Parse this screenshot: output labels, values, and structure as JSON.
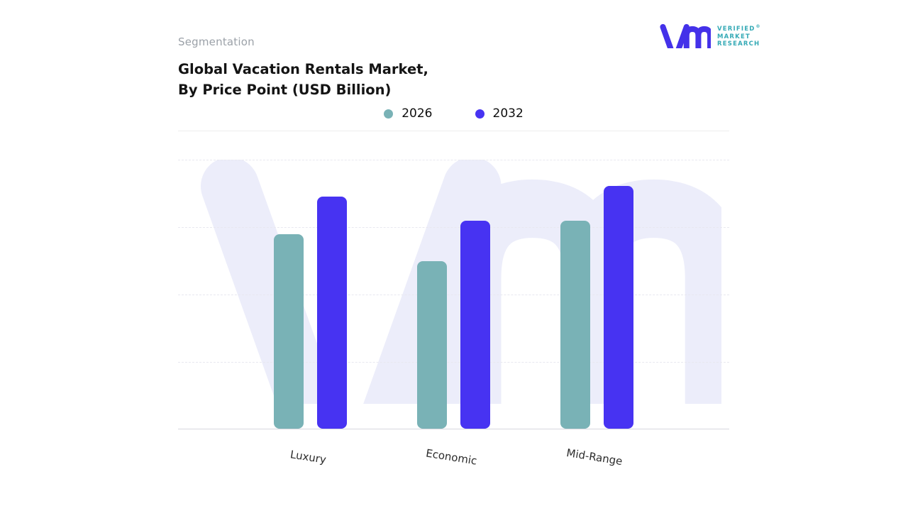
{
  "header": {
    "eyebrow": "Segmentation",
    "title_line1": "Global Vacation Rentals Market,",
    "title_line2": "By Price Point (USD Billion)"
  },
  "logo": {
    "line1": "VERIFIED",
    "line2": "MARKET",
    "line3": "RESEARCH",
    "registered": "®",
    "mark_color": "#4431e9",
    "text_color": "#35aab6"
  },
  "legend": {
    "items": [
      {
        "label": "2026",
        "color": "#79b2b6"
      },
      {
        "label": "2032",
        "color": "#4733f2"
      }
    ]
  },
  "chart_data": {
    "type": "bar",
    "title": "Global Vacation Rentals Market, By Price Point (USD Billion)",
    "categories": [
      "Luxury",
      "Economic",
      "Mid-Range"
    ],
    "series": [
      {
        "name": "2026",
        "color": "#79b2b6",
        "values": [
          72,
          62,
          77
        ]
      },
      {
        "name": "2032",
        "color": "#4733f2",
        "values": [
          86,
          77,
          90
        ]
      }
    ],
    "ylim": [
      0,
      100
    ],
    "xlabel": "",
    "ylabel": "",
    "grid": "horizontal-dashed",
    "legend_position": "top-center"
  },
  "watermark": {
    "color": "#ecedfa"
  }
}
